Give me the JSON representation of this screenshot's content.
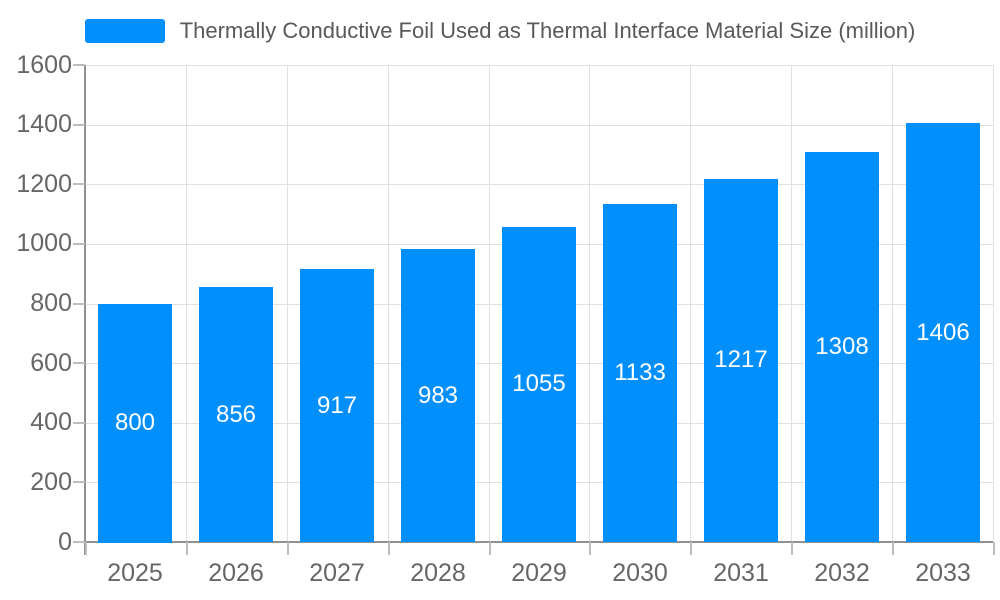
{
  "chart_data": {
    "type": "bar",
    "title": "Thermally Conductive Foil Used as Thermal Interface Material Size (million)",
    "categories": [
      "2025",
      "2026",
      "2027",
      "2028",
      "2029",
      "2030",
      "2031",
      "2032",
      "2033"
    ],
    "series": [
      {
        "name": "Thermally Conductive Foil Used as Thermal Interface Material Size (million)",
        "values": [
          800,
          856,
          917,
          983,
          1055,
          1133,
          1217,
          1308,
          1406
        ]
      }
    ],
    "values": [
      800,
      856,
      917,
      983,
      1055,
      1133,
      1217,
      1308,
      1406
    ],
    "value_labels": [
      "800",
      "856",
      "917",
      "983",
      "1055",
      "1133",
      "1217",
      "1308",
      "1406"
    ],
    "xlabel": "",
    "ylabel": "",
    "ylim": [
      0,
      1600
    ],
    "yticks": [
      0,
      200,
      400,
      600,
      800,
      1000,
      1200,
      1400,
      1600
    ],
    "ytick_step": 200,
    "grid": true,
    "legend_position": "top",
    "value_label_position": "inside-center"
  },
  "legend": {
    "items": [
      {
        "label": "Thermally Conductive Foil Used as Thermal Interface Material Size (million)",
        "color": "#008FFB"
      }
    ]
  },
  "colors": {
    "bar": "#008FFB",
    "grid": "#e0e0e0",
    "axis": "#919191",
    "tick": "#bdbdbd",
    "axis_label": "#666666",
    "title": "#595959",
    "value_label": "#ffffff",
    "background": "#ffffff"
  }
}
